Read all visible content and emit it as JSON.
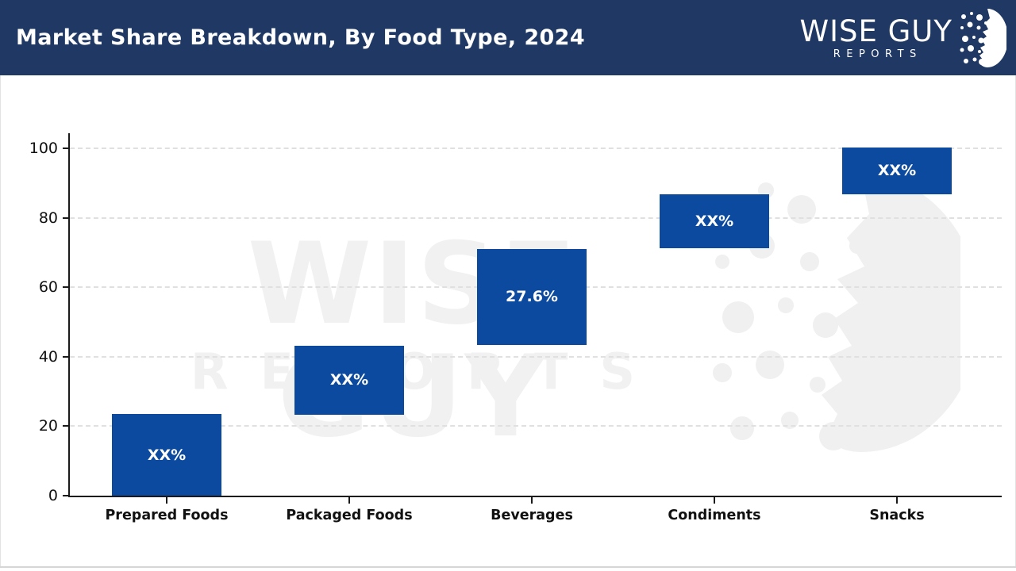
{
  "colors": {
    "header_background": "#203864",
    "header_text": "#ffffff",
    "bar_fill": "#0b4a9f",
    "bar_label_text": "#ffffff",
    "axis": "#1a1a1a",
    "gridline": "#e0e0e0",
    "watermark": "#f1f1f1"
  },
  "header": {
    "title": "Market Share Breakdown, By Food Type, 2024",
    "logo": {
      "wordmark": "WISE GUY",
      "sub": "REPORTS",
      "face_icon": "dotted-head-profile"
    }
  },
  "watermark": {
    "line1": "WISE GUY",
    "line2": "REPORTS",
    "face_icon": "dotted-head-profile"
  },
  "chart_data": {
    "type": "bar",
    "subtype": "floating-waterfall",
    "title": "Market Share Breakdown, By Food Type, 2024",
    "categories": [
      "Prepared Foods",
      "Packaged Foods",
      "Beverages",
      "Condiments",
      "Snacks"
    ],
    "bars": [
      {
        "category": "Prepared Foods",
        "start": 0,
        "end": 23.5,
        "label": "XX%"
      },
      {
        "category": "Packaged Foods",
        "start": 23.3,
        "end": 43.2,
        "label": "XX%"
      },
      {
        "category": "Beverages",
        "start": 43.4,
        "end": 71.0,
        "label": "27.6%"
      },
      {
        "category": "Condiments",
        "start": 71.2,
        "end": 86.8,
        "label": "XX%"
      },
      {
        "category": "Snacks",
        "start": 86.8,
        "end": 100.2,
        "label": "XX%"
      }
    ],
    "xlabel": "",
    "ylabel": "",
    "ylim": [
      0,
      104.5
    ],
    "yticks": [
      0,
      20,
      40,
      60,
      80,
      100
    ],
    "grid": true,
    "gridline_style": "dashed",
    "legend": false
  }
}
